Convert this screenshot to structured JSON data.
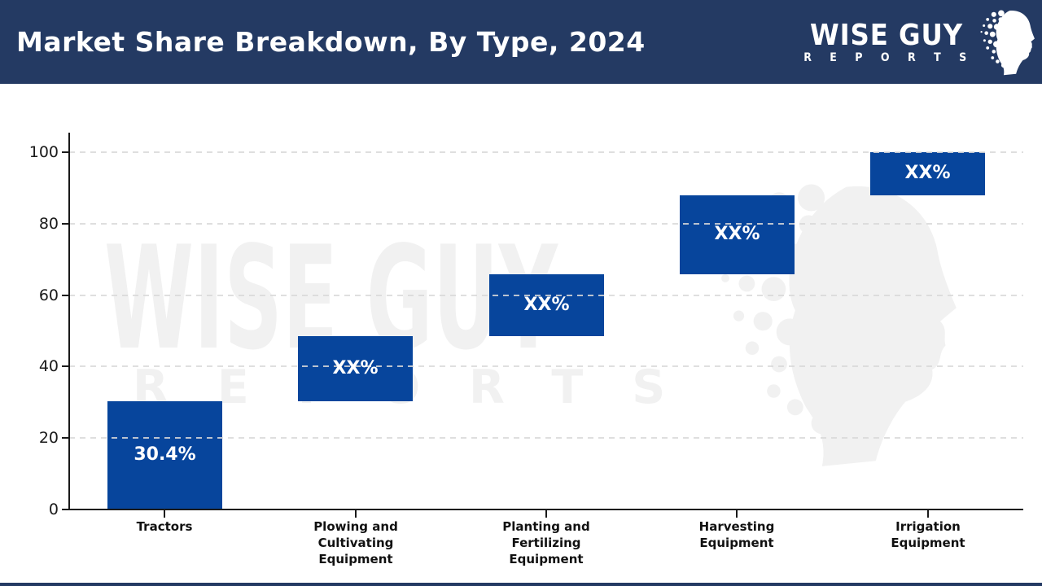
{
  "header": {
    "title": "Market Share Breakdown, By Type, 2024"
  },
  "logo": {
    "line1": "WISE GUY",
    "line2": "R E P O R T S"
  },
  "watermark": {
    "line1": "WISE GUY",
    "line2": "REPORTS"
  },
  "colors": {
    "header_bg": "#243A63",
    "bar_blue": "#07459C",
    "watermark_gray": "#f1f1f1",
    "grid_gray": "#d9d9d9",
    "axis_black": "#1a1a1a"
  },
  "chart_data": {
    "type": "bar",
    "subtype": "waterfall-floating-bars",
    "title": "Market Share Breakdown, By Type, 2024",
    "categories": [
      "Tractors",
      "Plowing and\nCultivating\nEquipment",
      "Planting and\nFertilizing\nEquipment",
      "Harvesting\nEquipment",
      "Irrigation\nEquipment"
    ],
    "segments": [
      {
        "start": 0,
        "end": 30.4
      },
      {
        "start": 30.4,
        "end": 48.6
      },
      {
        "start": 48.6,
        "end": 65.8
      },
      {
        "start": 65.8,
        "end": 88.0
      },
      {
        "start": 88.0,
        "end": 100
      }
    ],
    "bar_labels": [
      "30.4%",
      "XX%",
      "XX%",
      "XX%",
      "XX%"
    ],
    "xlabel": "",
    "ylabel": "",
    "ylim": [
      0,
      100
    ],
    "yticks": [
      0,
      20,
      40,
      60,
      80,
      100
    ],
    "grid": "horizontal-dashed",
    "legend": "none",
    "bar_color": "#07459C",
    "bar_label_color": "#ffffff"
  }
}
